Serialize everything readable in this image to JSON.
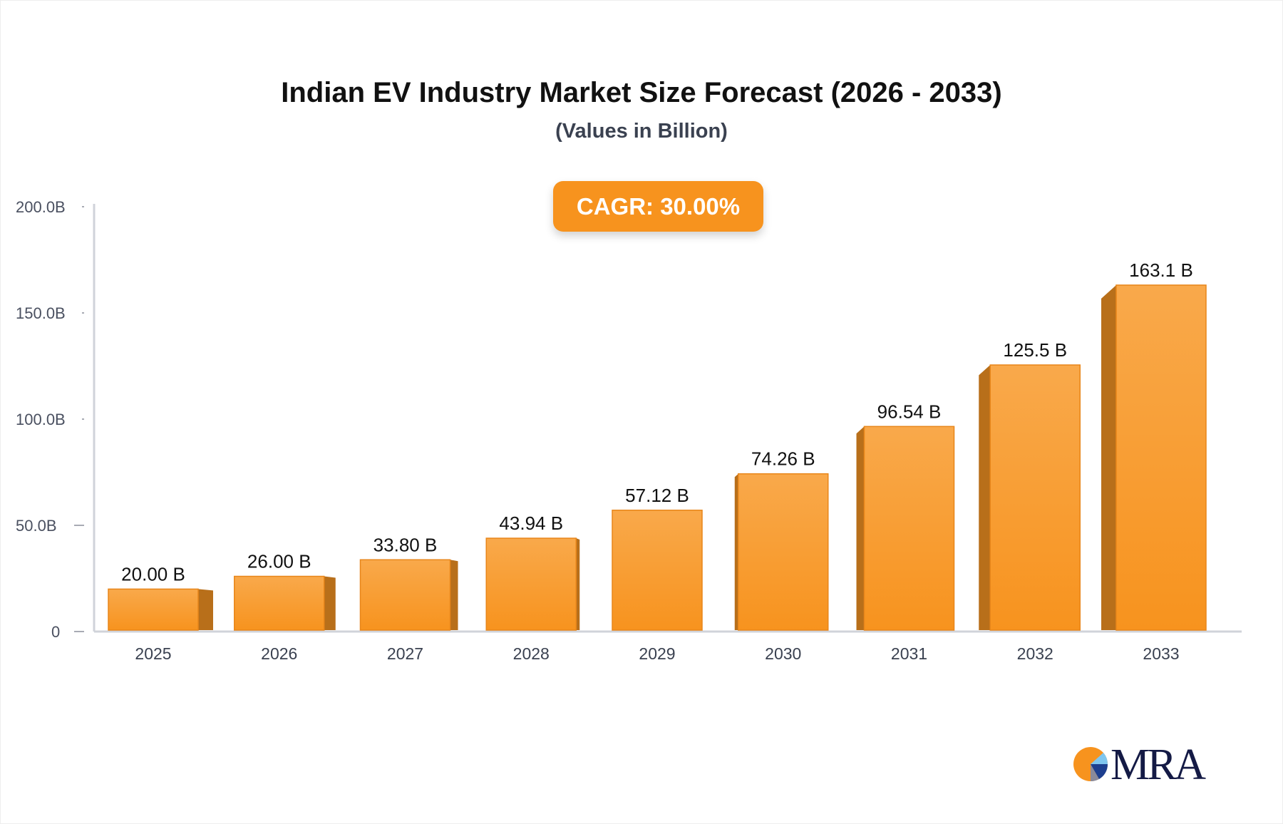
{
  "chart_data": {
    "type": "bar",
    "title": "Indian EV Industry Market Size Forecast (2026 - 2033)",
    "subtitle": "(Values in Billion)",
    "annotation": "CAGR: 30.00%",
    "categories": [
      "2025",
      "2026",
      "2027",
      "2028",
      "2029",
      "2030",
      "2031",
      "2032",
      "2033"
    ],
    "values": [
      20.0,
      26.0,
      33.8,
      43.94,
      57.12,
      74.26,
      96.54,
      125.5,
      163.1
    ],
    "data_labels": [
      "20.00 B",
      "26.00 B",
      "33.80 B",
      "43.94 B",
      "57.12 B",
      "74.26 B",
      "96.54 B",
      "125.5 B",
      "163.1 B"
    ],
    "ylim": [
      0,
      200
    ],
    "y_ticks": [
      0,
      50,
      100,
      150,
      200
    ],
    "y_tick_labels": [
      "0",
      "50.0B",
      "100.0B",
      "150.0B",
      "200.0B"
    ],
    "xlabel": "",
    "ylabel": "",
    "grid": false,
    "bar_style": "3d",
    "colors": {
      "bar_top": "#f9a94b",
      "bar_bottom": "#f7931e",
      "bar_side": "#b86f1a",
      "axis": "#d0d3da",
      "accent": "#f7931e"
    }
  },
  "logo": {
    "text": "MRA"
  }
}
